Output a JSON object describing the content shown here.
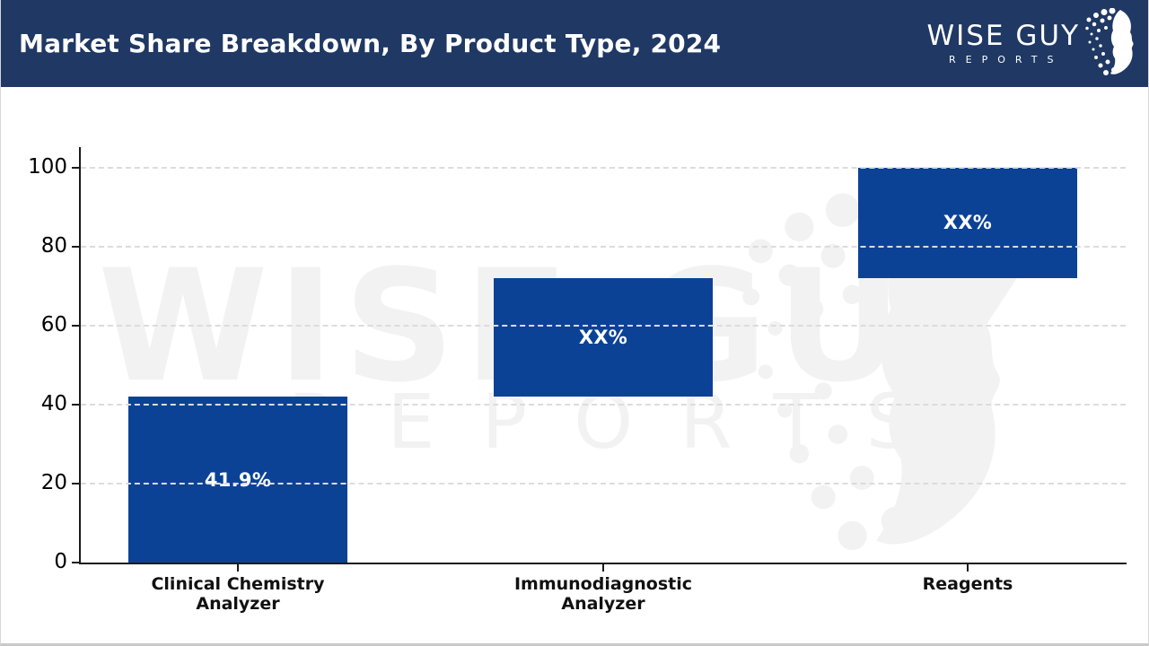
{
  "header": {
    "title": "Market Share Breakdown, By Product Type, 2024",
    "logo": {
      "line1": "WISE GUY",
      "line2": "REPORTS"
    },
    "bg_color": "#1f3864"
  },
  "watermark": {
    "line1": "WISE GUY",
    "line2": "REPORTS"
  },
  "chart_data": {
    "type": "bar",
    "subtype": "waterfall",
    "title": "Market Share Breakdown, By Product Type, 2024",
    "categories": [
      "Clinical Chemistry\nAnalyzer",
      "Immunodiagnostic\nAnalyzer",
      "Reagents"
    ],
    "segments": [
      {
        "category": "Clinical Chemistry Analyzer",
        "start": 0,
        "end": 41.9,
        "label": "41.9%"
      },
      {
        "category": "Immunodiagnostic Analyzer",
        "start": 42,
        "end": 72,
        "label": "XX%"
      },
      {
        "category": "Reagents",
        "start": 72,
        "end": 100,
        "label": "XX%"
      }
    ],
    "ylim": [
      0,
      100
    ],
    "yticks": [
      0,
      20,
      40,
      60,
      80,
      100
    ],
    "grid": "horizontal-dashed",
    "legend": "none",
    "bar_color": "#0b4296",
    "bar_label_color": "#ffffff",
    "axis_color": "#1a1a1a",
    "grid_color": "#dcdcdc"
  }
}
